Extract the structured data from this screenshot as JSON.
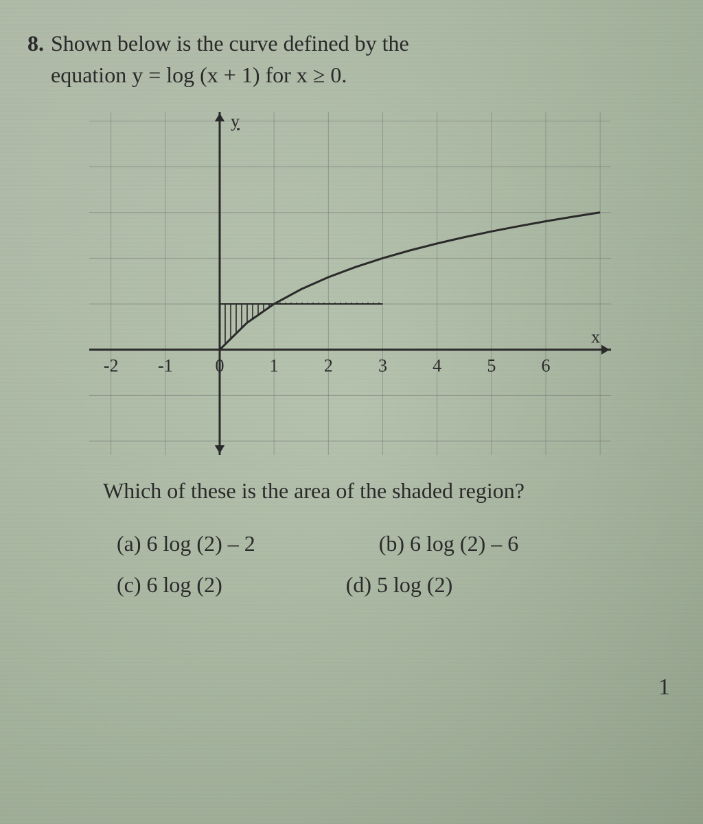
{
  "problem": {
    "number": "8.",
    "stem_line1": "Shown below is the curve defined by the",
    "stem_line2": "equation y = log (x + 1) for x ≥ 0."
  },
  "chart": {
    "type": "line-area",
    "x_ticks": [
      -2,
      -1,
      0,
      1,
      2,
      3,
      4,
      5,
      6
    ],
    "x_range": [
      -2.4,
      7.2
    ],
    "y_range": [
      -2.3,
      5.2
    ],
    "grid_step": 1,
    "axis_color": "#2a2a2a",
    "grid_color": "#6a6a6a",
    "grid_opacity": 0.45,
    "curve_color": "#2a2a2a",
    "curve_width": 3,
    "y_label": "y",
    "x_label": "x",
    "tick_fontsize": 26,
    "shaded": {
      "x_from": 0,
      "x_to": 3,
      "y_top": 1,
      "hatch_color": "#2a2a2a",
      "hatch_spacing": 8,
      "hatch_angle": 90
    },
    "curve_points": [
      [
        0,
        0
      ],
      [
        0.5,
        0.585
      ],
      [
        1,
        1
      ],
      [
        1.5,
        1.322
      ],
      [
        2,
        1.585
      ],
      [
        2.5,
        1.807
      ],
      [
        3,
        2
      ],
      [
        3.5,
        2.17
      ],
      [
        4,
        2.322
      ],
      [
        4.5,
        2.459
      ],
      [
        5,
        2.585
      ],
      [
        5.5,
        2.7
      ],
      [
        6,
        2.807
      ],
      [
        6.5,
        2.907
      ],
      [
        7,
        3
      ]
    ]
  },
  "subquestion": "Which of these is the area of the shaded region?",
  "options": {
    "a": "(a) 6 log (2) – 2",
    "b": "(b) 6 log (2) – 6",
    "c": "(c) 6 log (2)",
    "d": "(d) 5 log (2)"
  },
  "trailing": "1"
}
